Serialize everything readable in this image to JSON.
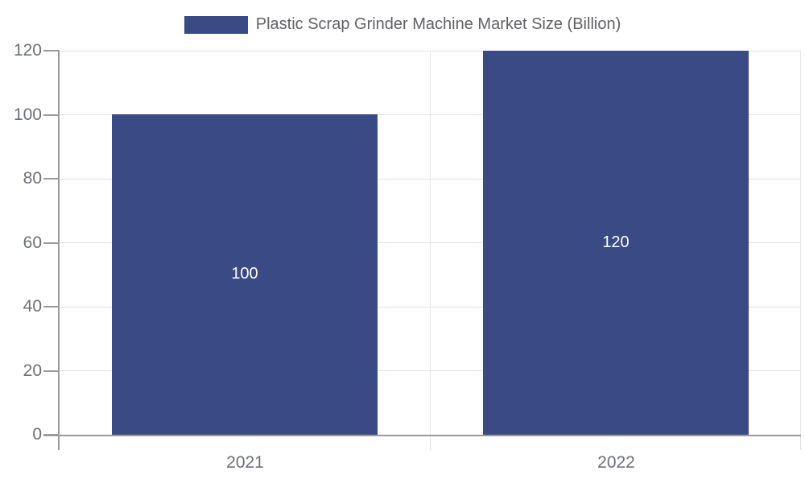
{
  "legend": {
    "label": "Plastic Scrap Grinder Machine Market Size (Billion)"
  },
  "chart_data": {
    "type": "bar",
    "title": "Plastic Scrap Grinder Machine Market Size (Billion)",
    "categories": [
      "2021",
      "2022"
    ],
    "series": [
      {
        "name": "Plastic Scrap Grinder Machine Market Size (Billion)",
        "values": [
          100,
          120
        ]
      }
    ],
    "value_labels": [
      "100",
      "120"
    ],
    "xlabel": "",
    "ylabel": "",
    "ylim": [
      0,
      120
    ],
    "yticks": [
      0,
      20,
      40,
      60,
      80,
      100,
      120
    ],
    "grid": true,
    "legend_position": "top-center",
    "bar_color": "#3a4a84",
    "value_label_color": "#ffffff",
    "axis_text_color": "#6e7079",
    "axis_line_color": "#9b9b9b",
    "grid_color": "#e4e4e4"
  }
}
